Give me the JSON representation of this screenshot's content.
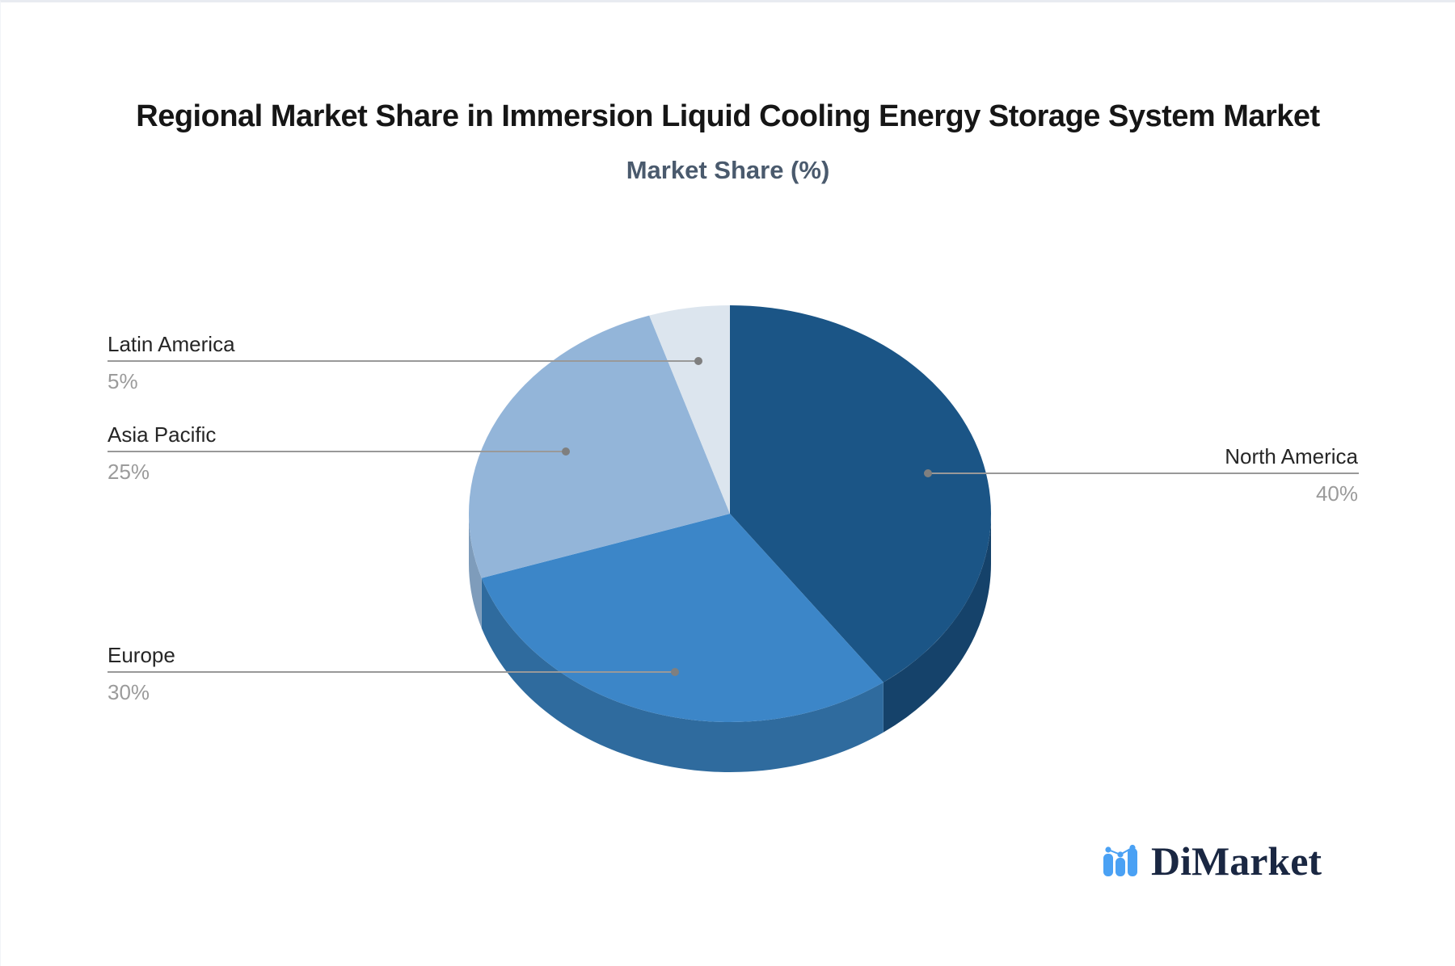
{
  "header": {
    "title": "Regional Market Share in Immersion Liquid Cooling Energy Storage System Market",
    "subtitle": "Market Share (%)"
  },
  "chart_data": {
    "type": "pie",
    "style": "3d-pie",
    "title": "Regional Market Share in Immersion Liquid Cooling Energy Storage System Market",
    "subtitle": "Market Share (%)",
    "unit": "percent",
    "start_angle": "12-oclock",
    "direction": "clockwise",
    "legend_position": "callout-labels",
    "slices": [
      {
        "label": "North America",
        "value": 40,
        "display_value": "40%",
        "color": "#1b5586",
        "side_color": "#15426a",
        "callout_side": "right"
      },
      {
        "label": "Europe",
        "value": 30,
        "display_value": "30%",
        "color": "#3c86c8",
        "side_color": "#2f6b9e",
        "callout_side": "left"
      },
      {
        "label": "Asia Pacific",
        "value": 25,
        "display_value": "25%",
        "color": "#93b5d9",
        "side_color": "#7e9cbb",
        "callout_side": "left"
      },
      {
        "label": "Latin America",
        "value": 5,
        "display_value": "5%",
        "color": "#dce5ee",
        "side_color": "#b9c6d6",
        "callout_side": "left"
      }
    ],
    "label_text_color": "#262626",
    "value_text_color": "#9b9b9b",
    "leader_line_color": "#999999",
    "leader_dot_color": "#7f7f7f"
  },
  "branding": {
    "logo_text": "DiMarket",
    "logo_icon": "bar-line-chart-icon",
    "logo_text_color": "#1a2742",
    "logo_icon_color": "#4aa1f4"
  }
}
